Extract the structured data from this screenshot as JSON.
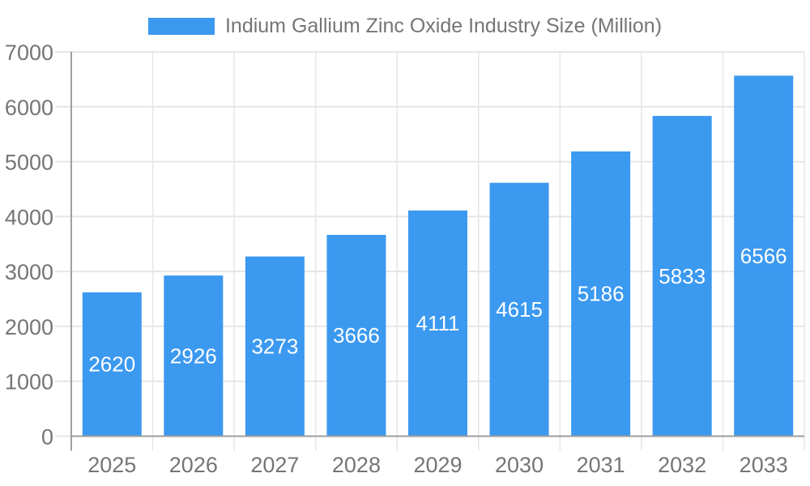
{
  "legend": {
    "label": "Indium Gallium Zinc Oxide Industry Size (Million)"
  },
  "chart_data": {
    "type": "bar",
    "title": "Indium Gallium Zinc Oxide Industry Size (Million)",
    "legend_entries": [
      "Indium Gallium Zinc Oxide Industry Size (Million)"
    ],
    "legend_position": "top-center",
    "categories": [
      "2025",
      "2026",
      "2027",
      "2028",
      "2029",
      "2030",
      "2031",
      "2032",
      "2033"
    ],
    "values": [
      2620,
      2926,
      3273,
      3666,
      4111,
      4615,
      5186,
      5833,
      6566
    ],
    "value_labels": [
      "2620",
      "2926",
      "3273",
      "3666",
      "4111",
      "4615",
      "5186",
      "5833",
      "6566"
    ],
    "xlabel": "",
    "ylabel": "",
    "ylim": [
      0,
      7000
    ],
    "ytick_step": 1000,
    "ytick_labels": [
      "0",
      "1000",
      "2000",
      "3000",
      "4000",
      "5000",
      "6000",
      "7000"
    ],
    "grid": true,
    "colors": {
      "bar": "#3B99F0",
      "grid": "#E6E6E6",
      "axis": "#9E9E9E",
      "tick_label": "#757575",
      "value_label": "#FFFFFF",
      "background": "#FFFFFF"
    }
  }
}
